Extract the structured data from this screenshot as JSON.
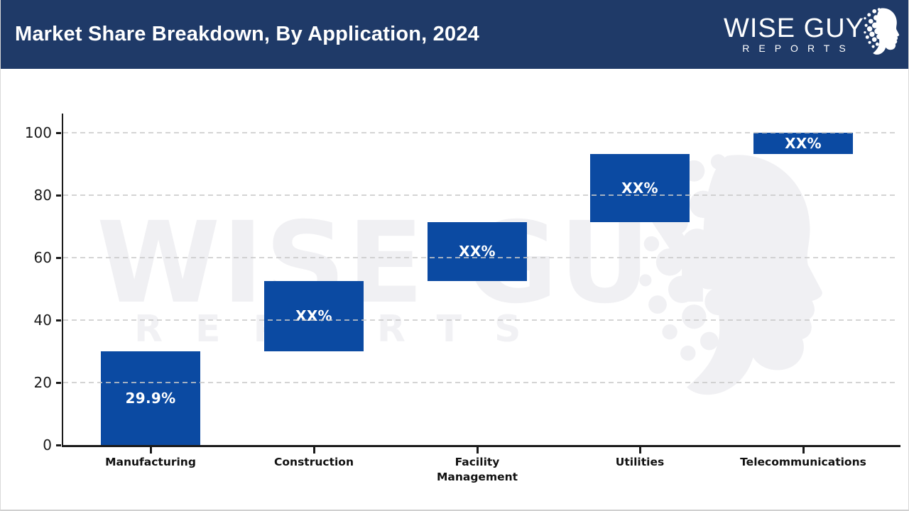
{
  "header": {
    "title": "Market Share Breakdown, By Application, 2024",
    "bg_color": "#1f3a68",
    "logo": {
      "name": "WISE GUY",
      "subtitle": "REPORTS"
    }
  },
  "watermark": {
    "line1": "WISE GUY",
    "line2": "REPORTS"
  },
  "chart_data": {
    "type": "bar",
    "subtype": "waterfall",
    "title": "Market Share Breakdown, By Application, 2024",
    "categories": [
      "Manufacturing",
      "Construction",
      "Facility\nManagement",
      "Utilities",
      "Telecommunications"
    ],
    "segments": [
      {
        "category": "Manufacturing",
        "start": 0,
        "end": 29.9,
        "label": "29.9%"
      },
      {
        "category": "Construction",
        "start": 29.9,
        "end": 52.6,
        "label": "XX%"
      },
      {
        "category": "Facility Management",
        "start": 52.6,
        "end": 71.3,
        "label": "XX%"
      },
      {
        "category": "Utilities",
        "start": 71.3,
        "end": 93.1,
        "label": "XX%"
      },
      {
        "category": "Telecommunications",
        "start": 93.1,
        "end": 100,
        "label": "XX%"
      }
    ],
    "yticks": [
      0,
      20,
      40,
      60,
      80,
      100
    ],
    "ylim": [
      0,
      105
    ],
    "xlabel": "",
    "ylabel": "",
    "grid": true,
    "gridline_style": "dashed",
    "legend": null,
    "bar_color": "#0b4aa2",
    "bar_label_color": "#ffffff",
    "axis_color": "#1a1a1a"
  }
}
